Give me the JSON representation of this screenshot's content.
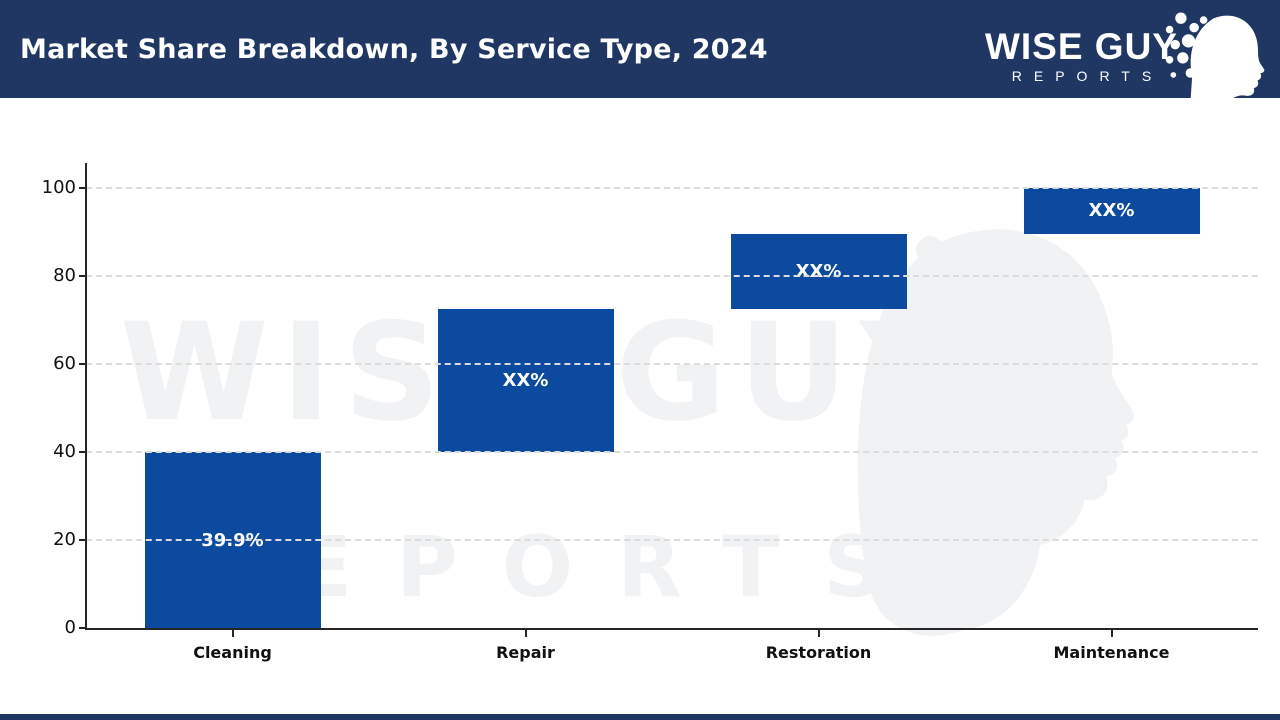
{
  "header": {
    "title": "Market Share Breakdown, By Service Type, 2024",
    "logo": {
      "line1": "WISE GUY",
      "line2": "REPORTS"
    }
  },
  "watermark": {
    "line1": "WISE GUY",
    "line2": "REPORTS"
  },
  "colors": {
    "header_bg": "#213763",
    "bar": "#0b4a9f",
    "grid": "#dcdcdc",
    "axis": "#262626",
    "watermark": "#f1f2f4",
    "bar_label": "#ffffff",
    "title_text": "#ffffff"
  },
  "chart_data": {
    "type": "bar",
    "variant": "waterfall",
    "title": "Market Share Breakdown, By Service Type, 2024",
    "categories": [
      "Cleaning",
      "Repair",
      "Restoration",
      "Maintenance"
    ],
    "segments": [
      {
        "category": "Cleaning",
        "start": 0,
        "end": 39.9,
        "label": "39.9%"
      },
      {
        "category": "Repair",
        "start": 39.9,
        "end": 72.5,
        "label": "XX%"
      },
      {
        "category": "Restoration",
        "start": 72.5,
        "end": 89.6,
        "label": "XX%"
      },
      {
        "category": "Maintenance",
        "start": 89.6,
        "end": 100,
        "label": "XX%"
      }
    ],
    "xlabel": "",
    "ylabel": "",
    "yticks": [
      0,
      20,
      40,
      60,
      80,
      100
    ],
    "ylim": [
      0,
      105
    ],
    "grid": "horizontal-dashed",
    "legend": null,
    "bar_color": "#0b4a9f",
    "label_color_inside_bar": "#ffffff"
  }
}
